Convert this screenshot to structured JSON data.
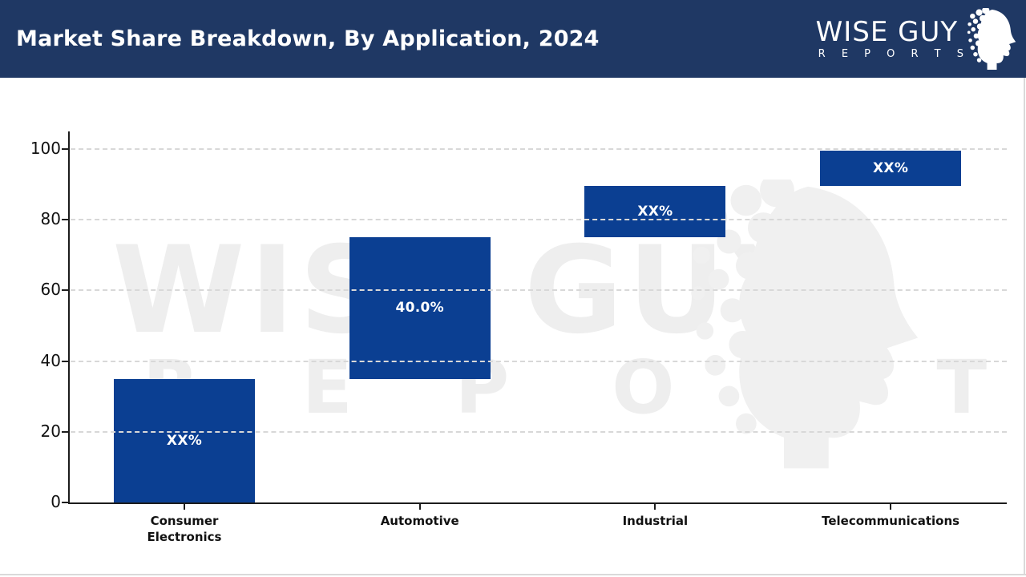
{
  "header": {
    "title": "Market Share Breakdown, By Application, 2024",
    "logo": {
      "line1": "WISE GUY",
      "line2": "R E P O R T S"
    }
  },
  "watermark": {
    "line1": "WISE GUY",
    "line2": "R E P O R T S"
  },
  "chart_data": {
    "type": "bar",
    "subtype": "waterfall",
    "title": "Market Share Breakdown, By Application, 2024",
    "categories": [
      "Consumer Electronics",
      "Automotive",
      "Industrial",
      "Telecommunications"
    ],
    "categories_wrapped": [
      [
        "Consumer",
        "Electronics"
      ],
      [
        "Automotive"
      ],
      [
        "Industrial"
      ],
      [
        "Telecommunications"
      ]
    ],
    "values": [
      35,
      40,
      14.5,
      10
    ],
    "starts": [
      0,
      35,
      75,
      89.5
    ],
    "ends": [
      35,
      75,
      89.5,
      99.5
    ],
    "bar_labels": [
      "XX%",
      "40.0%",
      "XX%",
      "XX%"
    ],
    "xlabel": "",
    "ylabel": "",
    "yticks": [
      0,
      20,
      40,
      60,
      80,
      100
    ],
    "ylim": [
      0,
      105
    ],
    "grid": "horizontal-dashed",
    "legend": "none",
    "bar_color": "#0b3f92",
    "bar_label_color": "#ffffff",
    "header_color": "#1f3864",
    "watermark_color": "#eeeeee"
  }
}
